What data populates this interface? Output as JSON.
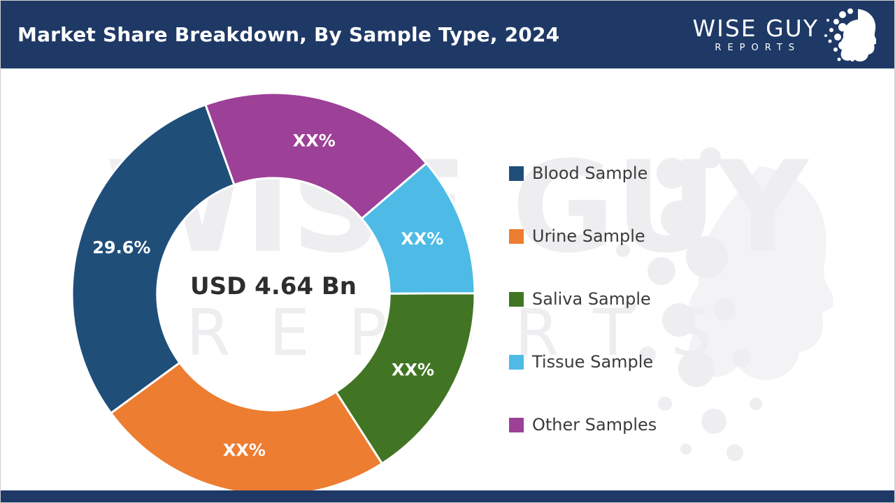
{
  "header": {
    "title": "Market Share Breakdown, By Sample Type, 2024",
    "bg_color": "#1f3966",
    "logo": {
      "line1": "WISE GUY",
      "line2": "REPORTS"
    }
  },
  "watermark": {
    "line1": "WISE GUY",
    "line2": "REPORTS"
  },
  "chart_data": {
    "type": "pie",
    "subtype": "donut",
    "title": "Market Share Breakdown, By Sample Type, 2024",
    "center_label": "USD 4.64 Bn",
    "start_angle_deg": 109.7,
    "direction": "counterclockwise",
    "inner_radius_ratio": 0.577,
    "legend_position": "right",
    "segments": [
      {
        "name": "Blood Sample",
        "value_pct": 29.6,
        "display_label": "29.6%",
        "color": "#1f4e79"
      },
      {
        "name": "Urine Sample",
        "value_pct": 24.0,
        "display_label": "XX%",
        "color": "#ed7d31"
      },
      {
        "name": "Saliva Sample",
        "value_pct": 16.0,
        "display_label": "XX%",
        "color": "#417524"
      },
      {
        "name": "Tissue Sample",
        "value_pct": 11.2,
        "display_label": "XX%",
        "color": "#4dbbe6"
      },
      {
        "name": "Other Samples",
        "value_pct": 19.2,
        "display_label": "XX%",
        "color": "#9d4097"
      }
    ]
  },
  "footer": {
    "bg_color": "#1f3966"
  }
}
